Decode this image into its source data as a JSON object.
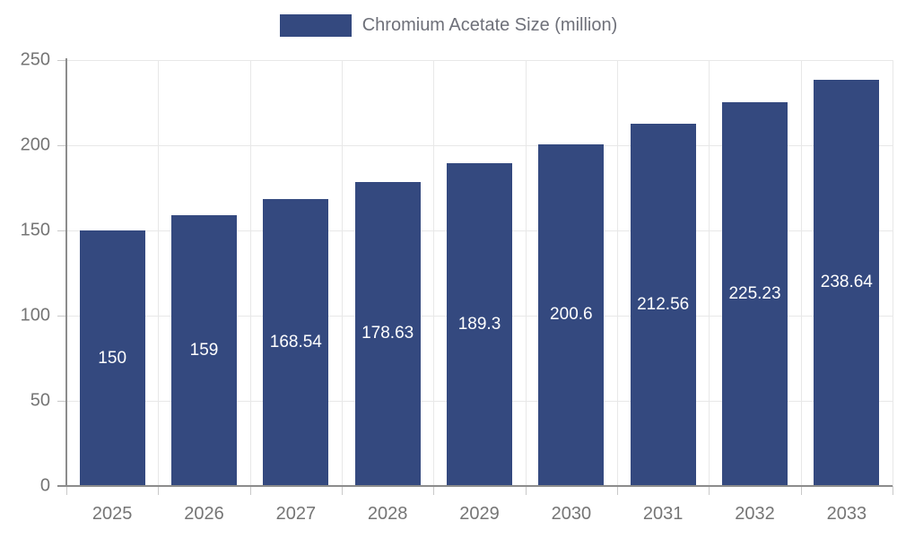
{
  "chart_data": {
    "type": "bar",
    "title": "Chromium Acetate Size (million)",
    "legend": {
      "label": "Chromium Acetate Size (million)",
      "position": "top-center"
    },
    "categories": [
      "2025",
      "2026",
      "2027",
      "2028",
      "2029",
      "2030",
      "2031",
      "2032",
      "2033"
    ],
    "values": [
      150,
      159,
      168.54,
      178.63,
      189.3,
      200.6,
      212.56,
      225.23,
      238.64
    ],
    "xlabel": "",
    "ylabel": "",
    "ylim": [
      0,
      250
    ],
    "yticks": [
      0,
      50,
      100,
      150,
      200,
      250
    ],
    "grid": true,
    "value_labels_inside_bars": true,
    "colors": {
      "bar": "#34497f",
      "value_label": "#ffffff",
      "axis_tick_label": "#757575",
      "legend_text": "#6e7079",
      "gridline": "#e8e8e8",
      "axis_line": "#8c8c8c"
    }
  }
}
